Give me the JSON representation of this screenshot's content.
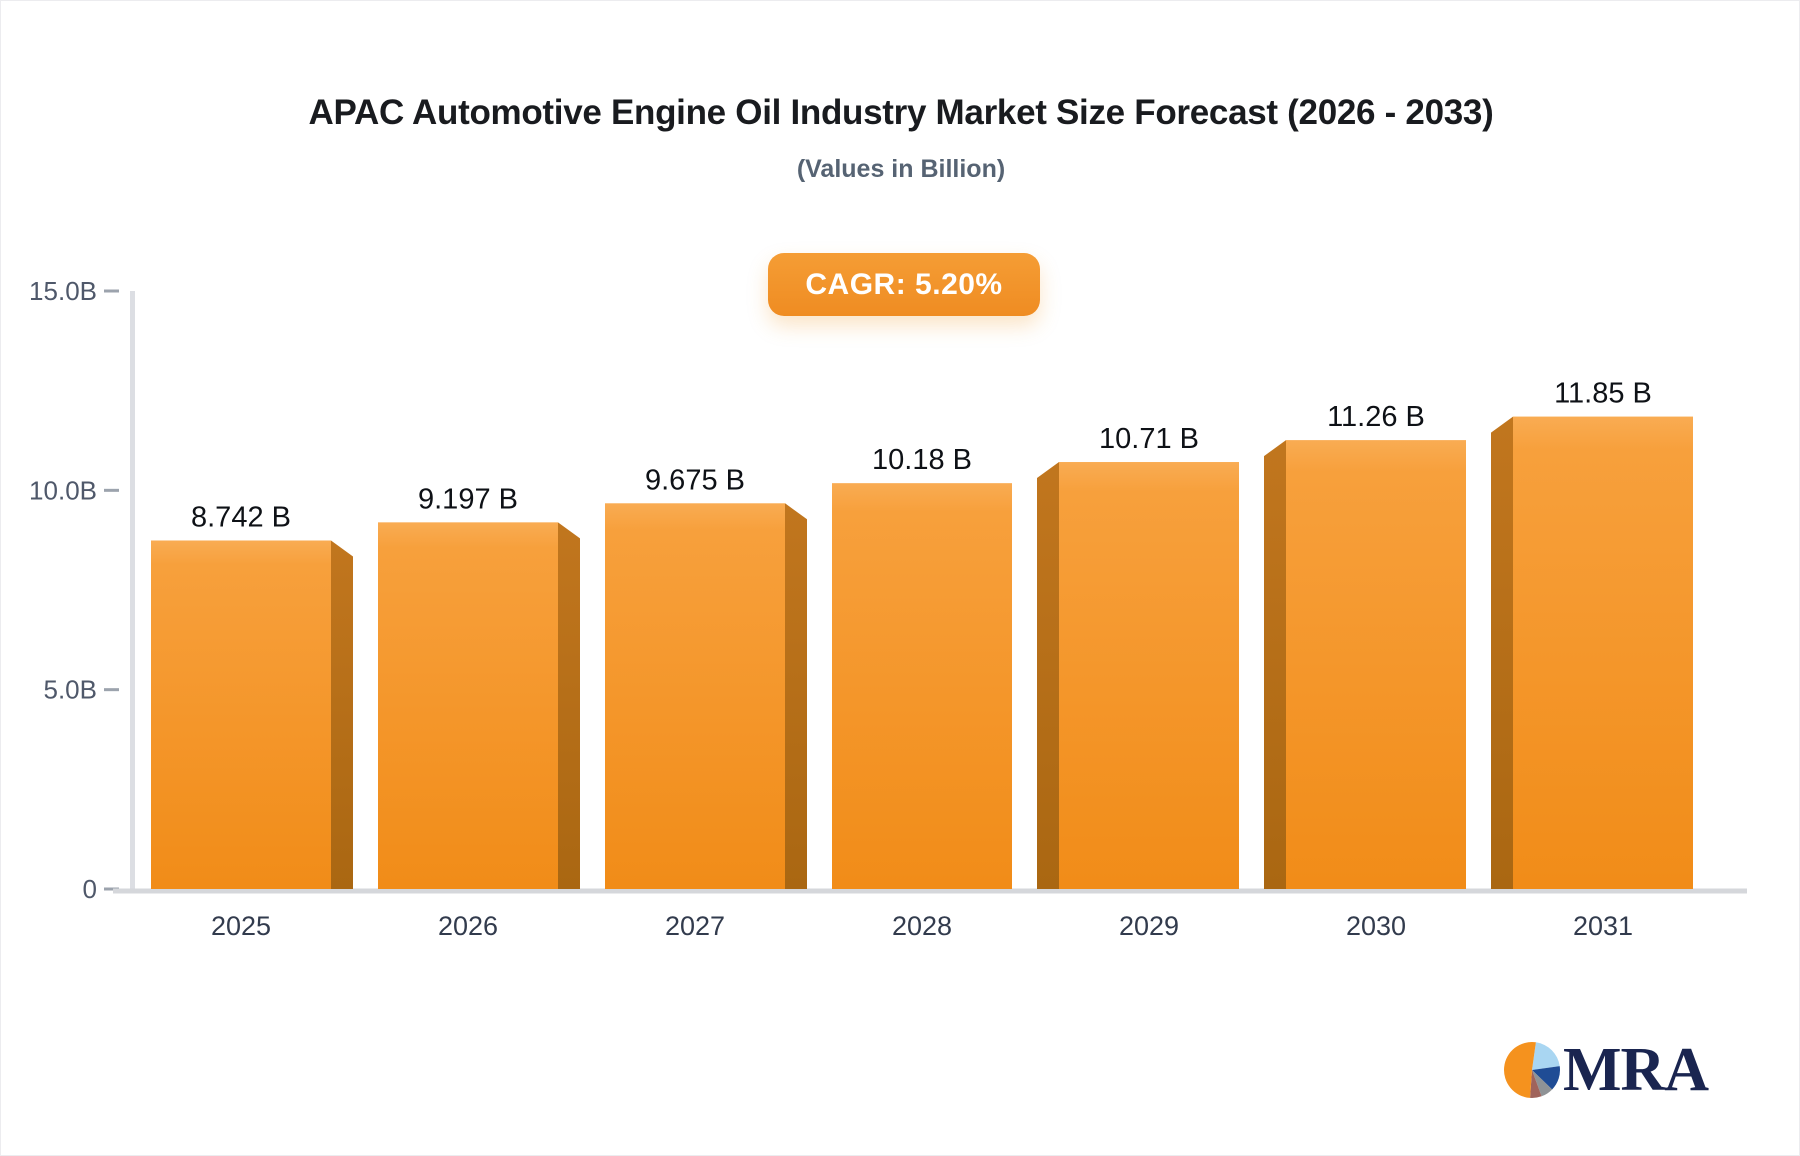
{
  "chart_data": {
    "type": "bar",
    "title": "APAC Automotive Engine Oil Industry Market Size Forecast (2026 - 2033)",
    "subtitle": "(Values in Billion)",
    "annotation": "CAGR: 5.20%",
    "categories": [
      "2025",
      "2026",
      "2027",
      "2028",
      "2029",
      "2030",
      "2031"
    ],
    "values": [
      8.742,
      9.197,
      9.675,
      10.18,
      10.71,
      11.26,
      11.85
    ],
    "value_labels": [
      "8.742 B",
      "9.197 B",
      "9.675 B",
      "10.18 B",
      "10.71 B",
      "11.26 B",
      "11.85 B"
    ],
    "xlabel": "",
    "ylabel": "",
    "ylim": [
      0,
      15
    ],
    "yticks": {
      "labels": [
        "15.0B",
        "10.0B",
        "5.0B",
        "0"
      ],
      "values": [
        15,
        10,
        5,
        0
      ]
    },
    "grid": false,
    "legend": "none",
    "colors": {
      "bar_top": "#f9ac53",
      "bar_mid": "#f7a03c",
      "bar_bottom": "#f18c18",
      "bar_side_top": "#c1761e",
      "bar_side_bottom": "#aa6712",
      "axis_line": "#dcdee3",
      "baseline": "#d5d7db",
      "tick": "#9ca3ad",
      "ytick_text": "#4f586a",
      "xtick_text": "#323b4d",
      "value_text": "#0e1116"
    }
  },
  "badge": {
    "label": "CAGR: 5.20%",
    "background": "#f2902a",
    "text_color": "#ffffff"
  },
  "logo": {
    "text": "MRA",
    "text_color": "#1a2550",
    "pie_slices": [
      {
        "name": "light-blue",
        "from": 8,
        "to": 82,
        "color": "#a9d6f2"
      },
      {
        "name": "navy",
        "from": 82,
        "to": 134,
        "color": "#1f4c95"
      },
      {
        "name": "gray",
        "from": 134,
        "to": 160,
        "color": "#8f9396"
      },
      {
        "name": "maroon",
        "from": 160,
        "to": 184,
        "color": "#a0635b"
      },
      {
        "name": "orange",
        "from": 184,
        "to": 368,
        "color": "#f5921e"
      }
    ]
  }
}
